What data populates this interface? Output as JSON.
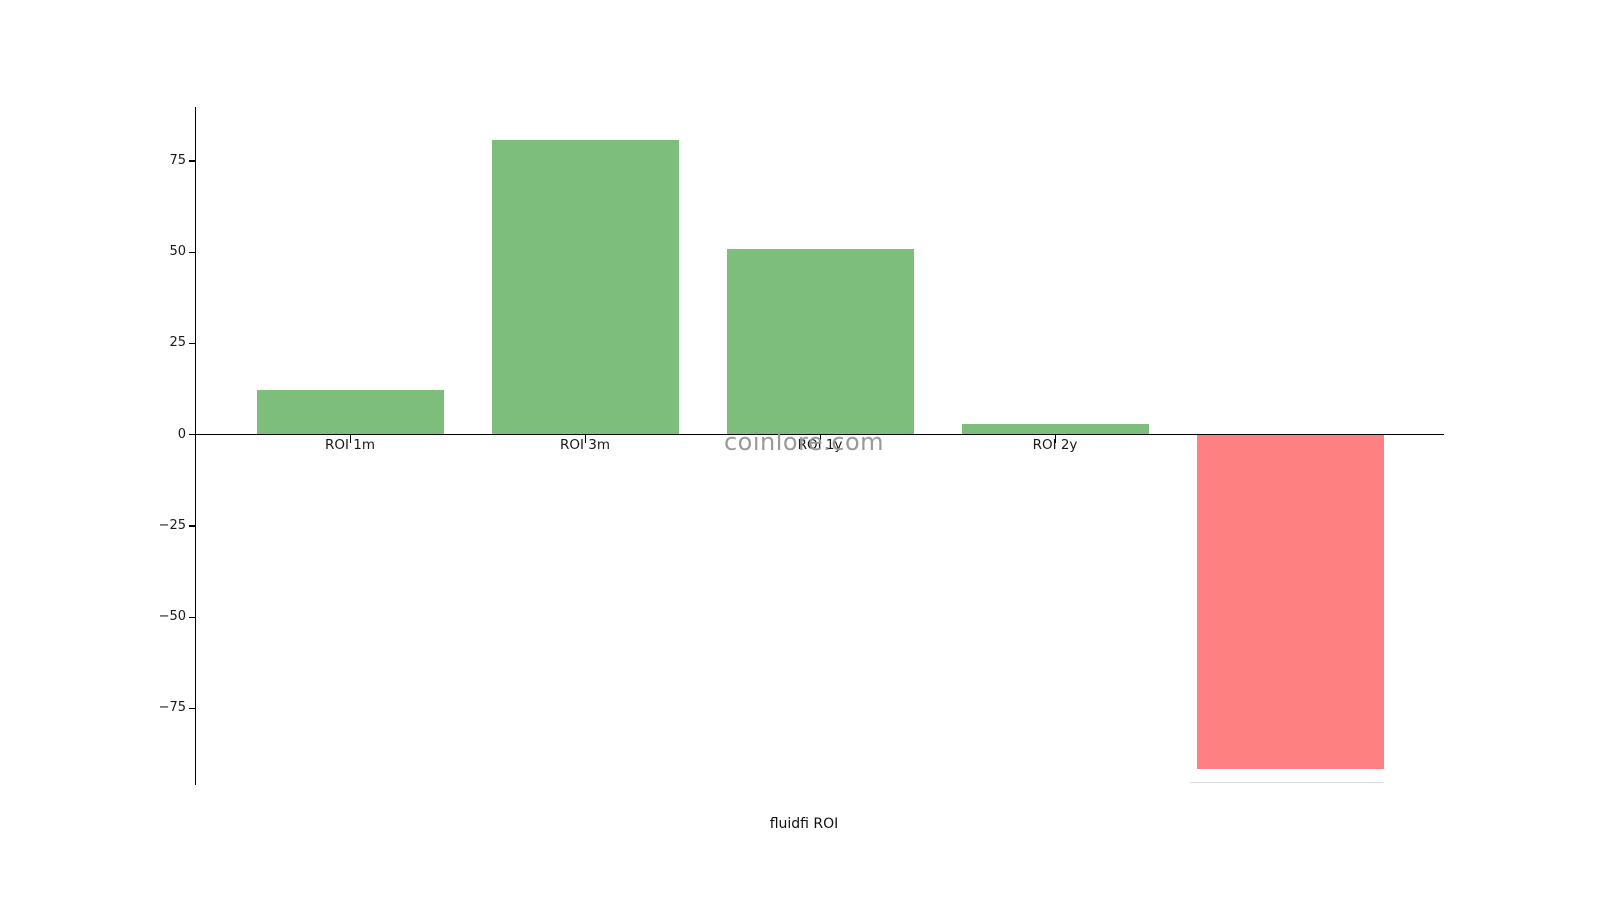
{
  "chart_data": {
    "type": "bar",
    "title": "fluidfi ROI",
    "watermark": "coinlore.com",
    "categories": [
      "ROI 1m",
      "ROI 3m",
      "ROI 1y",
      "ROI 2y",
      ""
    ],
    "values": [
      12.2,
      80.7,
      50.8,
      2.9,
      -91.6
    ],
    "yticks": [
      {
        "label": "75",
        "value": 75
      },
      {
        "label": "50",
        "value": 50
      },
      {
        "label": "25",
        "value": 25
      },
      {
        "label": "0",
        "value": 0
      },
      {
        "label": "−25",
        "value": -25
      },
      {
        "label": "−50",
        "value": -50
      },
      {
        "label": "−75",
        "value": -75
      }
    ],
    "ylim": [
      -96,
      90
    ],
    "grid": false,
    "legend": "none",
    "colors": {
      "positive": "#7dbe7b",
      "negative": "#ff8080",
      "axis": "#000000",
      "tick_text": "#1a1a1a",
      "watermark": "#999999"
    }
  }
}
